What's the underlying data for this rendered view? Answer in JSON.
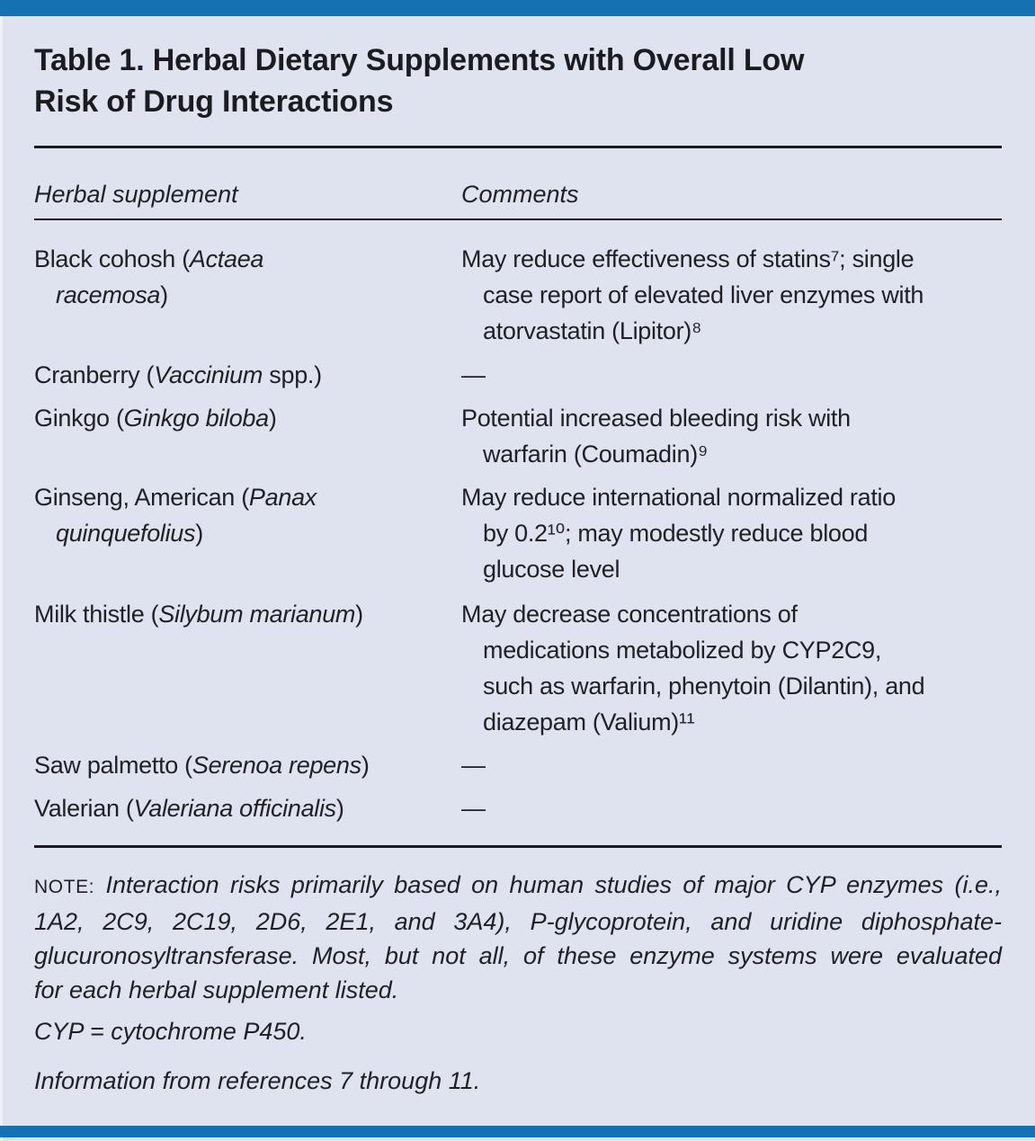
{
  "page": {
    "title_lines": [
      "Table 1. Herbal Dietary Supplements with Overall Low",
      "Risk of Drug Interactions"
    ],
    "colors": {
      "accent_bar": "#1571b2",
      "panel_background": "#dee3ef",
      "ink": "#201f24",
      "rule": "#1b1b1f"
    }
  },
  "table": {
    "columns": [
      {
        "label": "Herbal supplement"
      },
      {
        "label": "Comments"
      }
    ],
    "rows": [
      {
        "herb_lines": [
          "Black cohosh (*Actaea*",
          "*racemosa*)"
        ],
        "comment_lines": [
          "May reduce effectiveness of statins⁷; single",
          "case report of elevated liver enzymes with",
          "atorvastatin (Lipitor)⁸"
        ]
      },
      {
        "herb_lines": [
          "Cranberry (*Vaccinium* spp.)"
        ],
        "comment_lines": [
          "—"
        ]
      },
      {
        "herb_lines": [
          "Ginkgo (*Ginkgo biloba*)"
        ],
        "comment_lines": [
          "Potential increased bleeding risk with",
          "warfarin (Coumadin)⁹"
        ]
      },
      {
        "herb_lines": [
          "Ginseng, American (*Panax*",
          "*quinquefolius*)"
        ],
        "comment_lines": [
          "May reduce international normalized ratio",
          "by 0.2¹⁰; may modestly reduce blood",
          "glucose level"
        ]
      },
      {
        "herb_lines": [
          "Milk thistle (*Silybum marianum*)"
        ],
        "comment_lines": [
          "May decrease concentrations of",
          "medications metabolized by CYP2C9,",
          "such as warfarin, phenytoin (Dilantin), and",
          "diazepam (Valium)¹¹"
        ]
      },
      {
        "herb_lines": [
          "Saw palmetto (*Serenoa repens*)"
        ],
        "comment_lines": [
          "—"
        ]
      },
      {
        "herb_lines": [
          "Valerian (*Valeriana officinalis*)"
        ],
        "comment_lines": [
          "—"
        ]
      }
    ]
  },
  "footer": {
    "note_label": "NOTE:",
    "note_lines": [
      "Interaction risks primarily based on human studies of major CYP enzymes (i.e.,",
      "1A2, 2C9, 2C19, 2D6, 2E1, and 3A4), P-glycoprotein, and uridine diphosphate-",
      "glucuronosyltransferase. Most, but not all, of these enzyme systems were evaluated",
      "for each herbal supplement listed.",
      "CYP = cytochrome P450.",
      "Information from references 7 through 11."
    ]
  }
}
